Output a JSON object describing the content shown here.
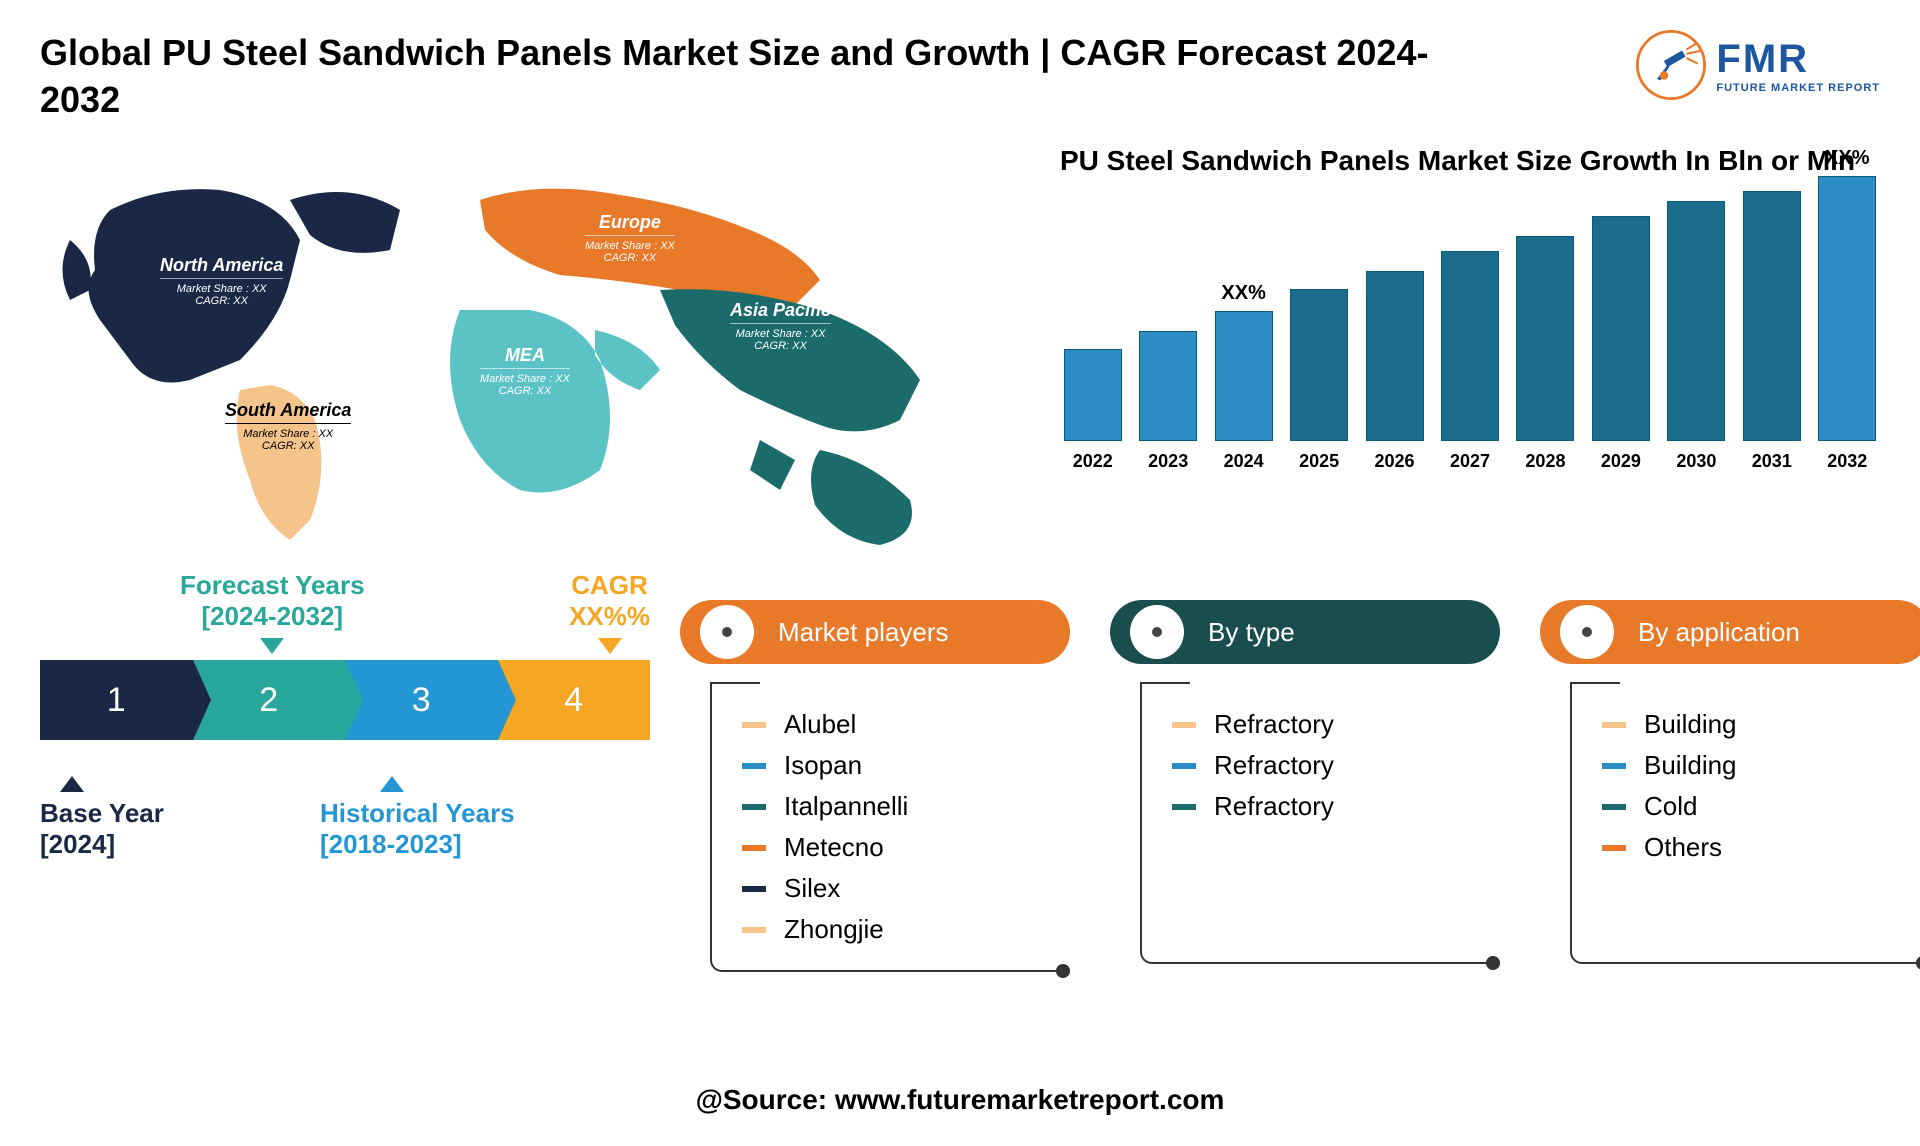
{
  "title": "Global PU Steel Sandwich Panels Market Size and Growth | CAGR Forecast 2024-2032",
  "logo": {
    "main": "FMR",
    "sub": "FUTURE MARKET REPORT"
  },
  "colors": {
    "navy": "#1a2845",
    "teal_deep": "#1b6b6b",
    "teal_light": "#5bc3c6",
    "orange": "#e87929",
    "tan": "#f4c48a",
    "blue_brand": "#1e56a0",
    "chart_blue_light": "#2b8dc4",
    "chart_blue_dark": "#1b6b8a",
    "timeline_teal": "#2aa79b",
    "timeline_blue": "#2596d4",
    "timeline_amber": "#f5a623"
  },
  "map": {
    "regions": [
      {
        "key": "na",
        "name": "North America",
        "share": "Market Share : XX",
        "cagr": "CAGR: XX",
        "fill": "#1a2845"
      },
      {
        "key": "sa",
        "name": "South America",
        "share": "Market Share : XX",
        "cagr": "CAGR: XX",
        "fill": "#f4c48a"
      },
      {
        "key": "eu",
        "name": "Europe",
        "share": "Market Share : XX",
        "cagr": "CAGR: XX",
        "fill": "#e87929"
      },
      {
        "key": "mea",
        "name": "MEA",
        "share": "Market Share : XX",
        "cagr": "CAGR: XX",
        "fill": "#5bc3c6"
      },
      {
        "key": "ap",
        "name": "Asia Pacific",
        "share": "Market Share : XX",
        "cagr": "CAGR: XX",
        "fill": "#1b6b6b"
      }
    ]
  },
  "chart": {
    "type": "bar",
    "title": "PU Steel Sandwich Panels Market Size Growth In Bln or Mln",
    "years": [
      "2022",
      "2023",
      "2024",
      "2025",
      "2026",
      "2027",
      "2028",
      "2029",
      "2030",
      "2031",
      "2032"
    ],
    "heights": [
      92,
      110,
      130,
      152,
      170,
      190,
      205,
      225,
      240,
      250,
      265
    ],
    "colors": [
      "#2b8dc4",
      "#2b8dc4",
      "#2b8dc4",
      "#1b6b8a",
      "#1b6b8a",
      "#1b6b8a",
      "#1b6b8a",
      "#1b6b8a",
      "#1b6b8a",
      "#1b6b8a",
      "#2b8dc4"
    ],
    "annotations": {
      "2": "XX%",
      "10": "XX%"
    }
  },
  "timeline": {
    "forecast_label": "Forecast Years",
    "forecast_range": "[2024-2032]",
    "cagr_label": "CAGR",
    "cagr_value": "XX%%",
    "base_label": "Base Year",
    "base_value": "[2024]",
    "hist_label": "Historical Years",
    "hist_range": "[2018-2023]",
    "cells": [
      "1",
      "2",
      "3",
      "4"
    ]
  },
  "segments": [
    {
      "title": "Market players",
      "header_color": "#e87929",
      "items": [
        {
          "label": "Alubel",
          "dash": "#f4c48a"
        },
        {
          "label": "Isopan",
          "dash": "#2b8dc4"
        },
        {
          "label": "Italpannelli",
          "dash": "#1b6b6b"
        },
        {
          "label": "Metecno",
          "dash": "#e87929"
        },
        {
          "label": "Silex",
          "dash": "#1a2845"
        },
        {
          "label": "Zhongjie",
          "dash": "#f4c48a"
        }
      ]
    },
    {
      "title": "By type",
      "header_color": "#1a4d4d",
      "items": [
        {
          "label": "Refractory",
          "dash": "#f4c48a"
        },
        {
          "label": "Refractory",
          "dash": "#2b8dc4"
        },
        {
          "label": "Refractory",
          "dash": "#1b6b6b"
        }
      ]
    },
    {
      "title": "By application",
      "header_color": "#e87929",
      "items": [
        {
          "label": "Building",
          "dash": "#f4c48a"
        },
        {
          "label": "Building",
          "dash": "#2b8dc4"
        },
        {
          "label": "Cold",
          "dash": "#1b6b6b"
        },
        {
          "label": "Others",
          "dash": "#e87929"
        }
      ]
    }
  ],
  "source": "@Source: www.futuremarketreport.com"
}
